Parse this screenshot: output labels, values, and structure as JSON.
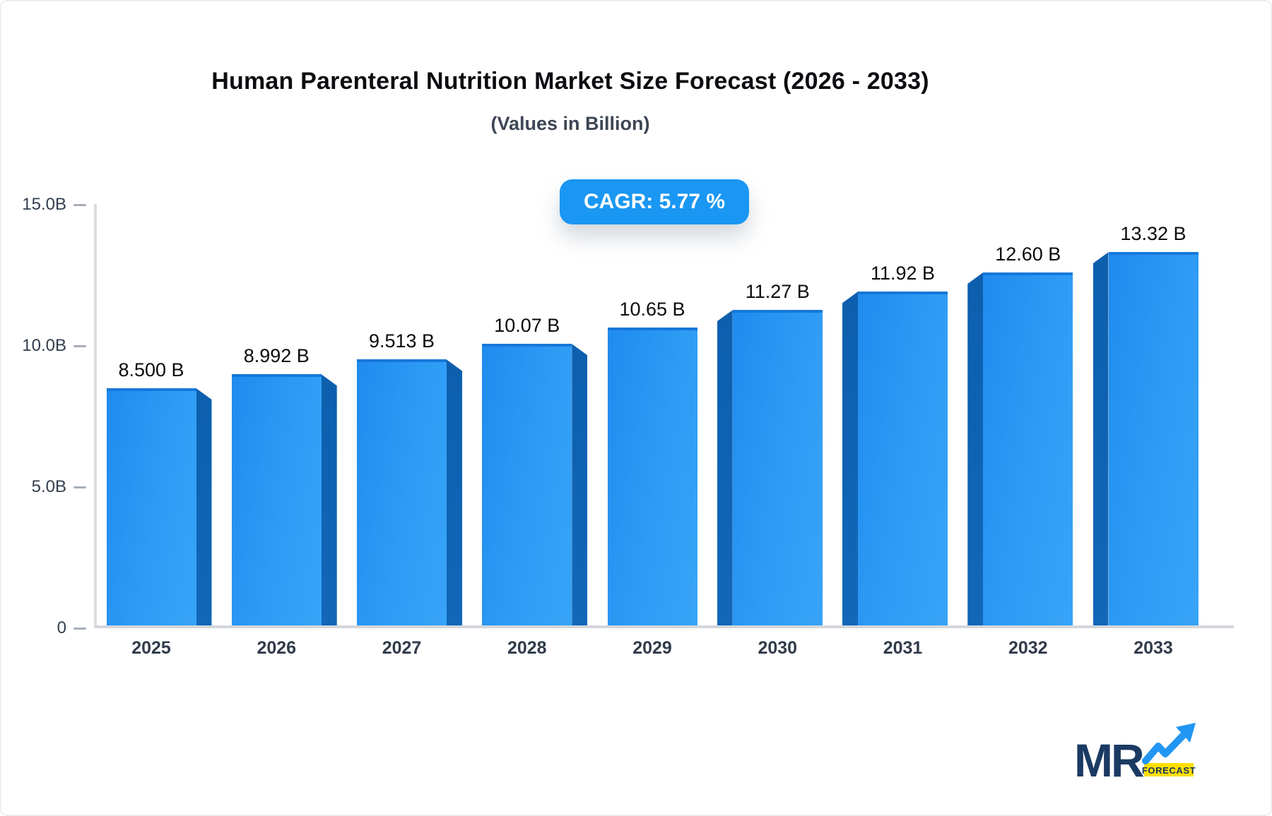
{
  "header": {
    "title": "Human Parenteral Nutrition Market Size Forecast (2026 - 2033)",
    "subtitle": "(Values in Billion)",
    "cagr_badge": "CAGR: 5.77 %"
  },
  "chart_data": {
    "type": "bar",
    "title": "Human Parenteral Nutrition Market Size Forecast (2026 - 2033)",
    "subtitle": "(Values in Billion)",
    "cagr": "5.77 %",
    "categories": [
      "2025",
      "2026",
      "2027",
      "2028",
      "2029",
      "2030",
      "2031",
      "2032",
      "2033"
    ],
    "values": [
      8.5,
      8.992,
      9.513,
      10.07,
      10.65,
      11.27,
      11.92,
      12.6,
      13.32
    ],
    "data_labels": [
      "8.500 B",
      "8.992 B",
      "9.513 B",
      "10.07 B",
      "10.65 B",
      "11.27 B",
      "11.92 B",
      "12.60 B",
      "13.32 B"
    ],
    "xlabel": "",
    "ylabel": "",
    "ylim": [
      0,
      15
    ],
    "yticks": [
      {
        "label": "0",
        "value": 0
      },
      {
        "label": "5.0B",
        "value": 5
      },
      {
        "label": "10.0B",
        "value": 10
      },
      {
        "label": "15.0B",
        "value": 15
      }
    ],
    "grid": false,
    "legend": false,
    "bar_style": "3d-extruded",
    "colors": {
      "bar_face": "#2e9cf5",
      "bar_face_top_edge": "#1678d9",
      "bar_side": "#0f63b3",
      "badge": "#1a97f3",
      "axis_line": "#d6d9de",
      "tick": "#a7aeb8",
      "axis_text": "#333e4e",
      "value_text": "#0a0b0d",
      "title_text": "#0c0d11",
      "subtitle_text": "#3d4654"
    }
  },
  "logo": {
    "mr_text": "MR",
    "forecast_text": "FORECAST",
    "navy": "#1b3a63",
    "arrow_blue": "#2196f3",
    "yellow": "#ffdf00"
  }
}
